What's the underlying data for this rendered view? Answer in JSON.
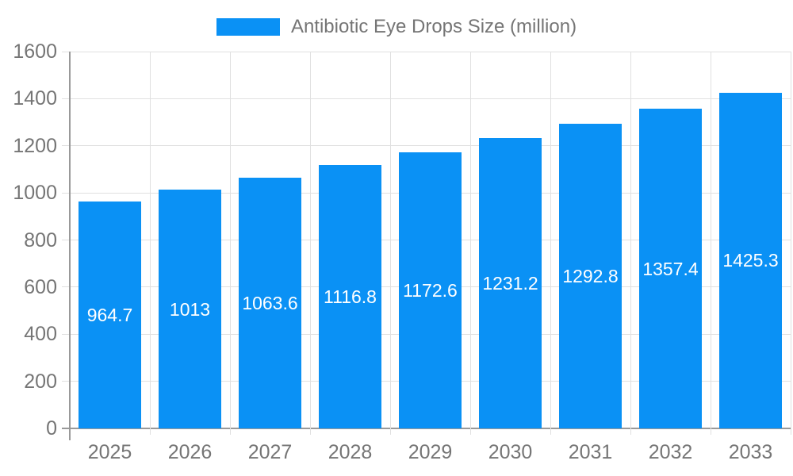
{
  "legend": {
    "label": "Antibiotic Eye Drops Size (million)"
  },
  "chart_data": {
    "type": "bar",
    "title": "Antibiotic Eye Drops Size (million)",
    "categories": [
      "2025",
      "2026",
      "2027",
      "2028",
      "2029",
      "2030",
      "2031",
      "2032",
      "2033"
    ],
    "values": [
      964.7,
      1013,
      1063.6,
      1116.8,
      1172.6,
      1231.2,
      1292.8,
      1357.4,
      1425.3
    ],
    "value_labels": [
      "964.7",
      "1013",
      "1063.6",
      "1116.8",
      "1172.6",
      "1231.2",
      "1292.8",
      "1357.4",
      "1425.3"
    ],
    "xlabel": "",
    "ylabel": "",
    "ylim": [
      0,
      1600
    ],
    "ytick_interval": 200,
    "yticks": [
      "0",
      "200",
      "400",
      "600",
      "800",
      "1000",
      "1200",
      "1400",
      "1600"
    ],
    "grid": true,
    "legend_position": "top",
    "bar_color": "#0a91f5",
    "value_label_color": "#ffffff",
    "axis_text_color": "#757575",
    "grid_color": "#e0e0e0",
    "axis_line_color": "#999999",
    "background_color": "#ffffff"
  }
}
